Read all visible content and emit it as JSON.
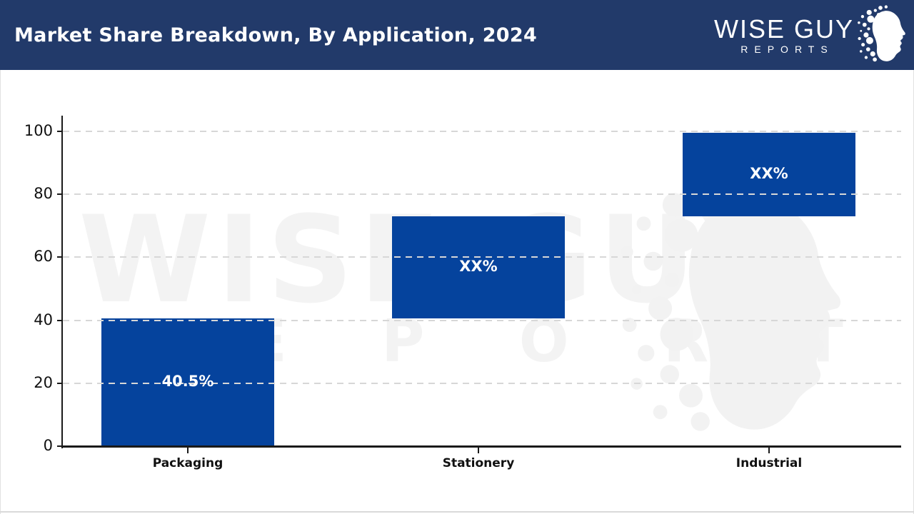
{
  "header": {
    "title": "Market Share Breakdown, By Application, 2024",
    "logo": {
      "line1": "WISE GUY",
      "line2": "REPORTS"
    }
  },
  "watermark": {
    "line1": "WISE GUY",
    "line2": "R E P O R T S"
  },
  "colors": {
    "header_bg": "#223a6a",
    "bar": "#05439d",
    "grid": "#d7d7d7",
    "axis": "#1a1a1a",
    "tick_label": "#111111",
    "title_text": "#ffffff",
    "value_label": "#ffffff",
    "watermark": "#f3f3f3"
  },
  "chart_data": {
    "type": "bar",
    "subtype": "waterfall",
    "title": "Market Share Breakdown, By Application, 2024",
    "categories": [
      "Packaging",
      "Stationery",
      "Industrial"
    ],
    "segments": [
      {
        "category": "Packaging",
        "start": 0,
        "end": 40.5,
        "label": "40.5%"
      },
      {
        "category": "Stationery",
        "start": 40.5,
        "end": 73,
        "label": "XX%"
      },
      {
        "category": "Industrial",
        "start": 73,
        "end": 99.5,
        "label": "XX%"
      }
    ],
    "xlabel": "",
    "ylabel": "",
    "yticks": [
      0,
      20,
      40,
      60,
      80,
      100
    ],
    "ylim": [
      0,
      105
    ],
    "grid": "horizontal-dashed",
    "legend": "none"
  }
}
